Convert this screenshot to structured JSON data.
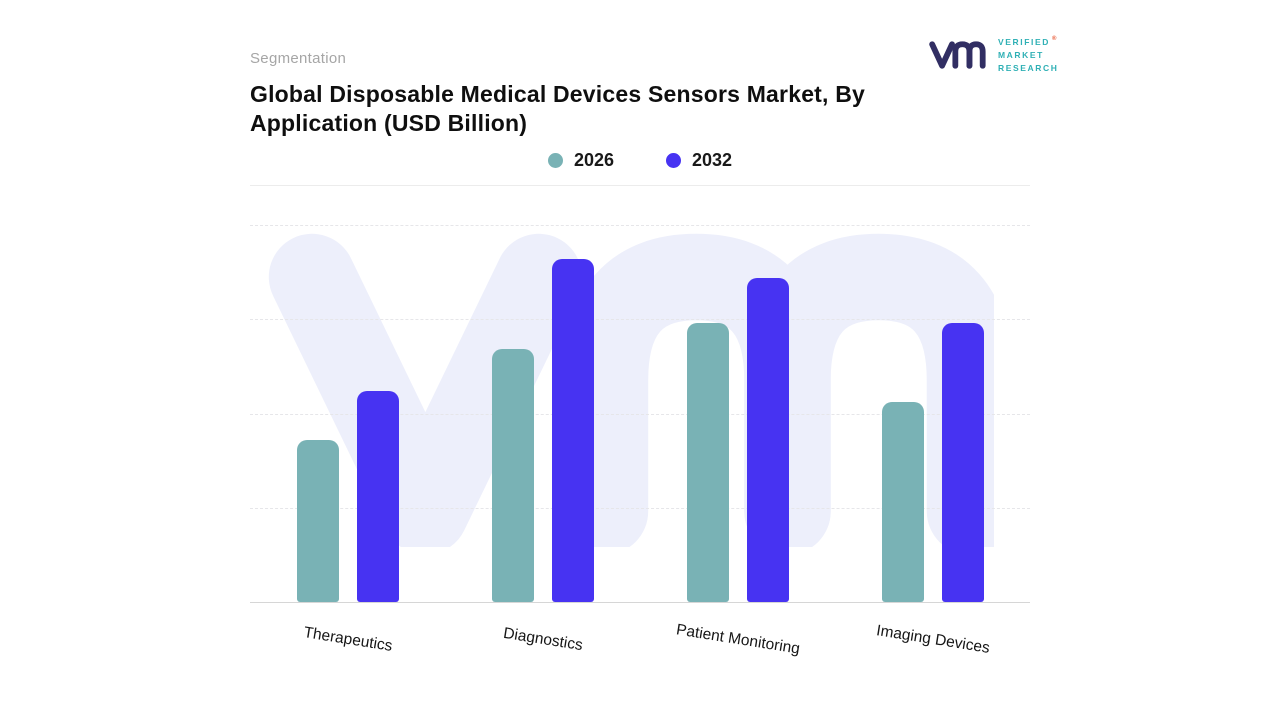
{
  "page": {
    "kicker": "Segmentation",
    "title": "Global Disposable Medical Devices Sensors Market, By Application (USD Billion)"
  },
  "logo": {
    "line1": "VERIFIED",
    "line2": "MARKET",
    "line3": "RESEARCH",
    "registered_mark": "®",
    "mark_color": "#312e63",
    "text_color": "#2fb0b5"
  },
  "chart_data": {
    "type": "bar",
    "title": "Global Disposable Medical Devices Sensors Market, By Application (USD Billion)",
    "categories": [
      "Therapeutics",
      "Diagnostics",
      "Patient Monitoring",
      "Imaging Devices"
    ],
    "series": [
      {
        "name": "2026",
        "color": "#79b2b5",
        "values": [
          43,
          67,
          74,
          53
        ]
      },
      {
        "name": "2032",
        "color": "#4733f2",
        "values": [
          56,
          91,
          86,
          74
        ]
      }
    ],
    "ylim": [
      0,
      100
    ],
    "xlabel": "",
    "ylabel": "",
    "value_axis_visible": false,
    "grid": "dashed-horizontal",
    "legend_position": "top-center",
    "watermark": "VM"
  }
}
